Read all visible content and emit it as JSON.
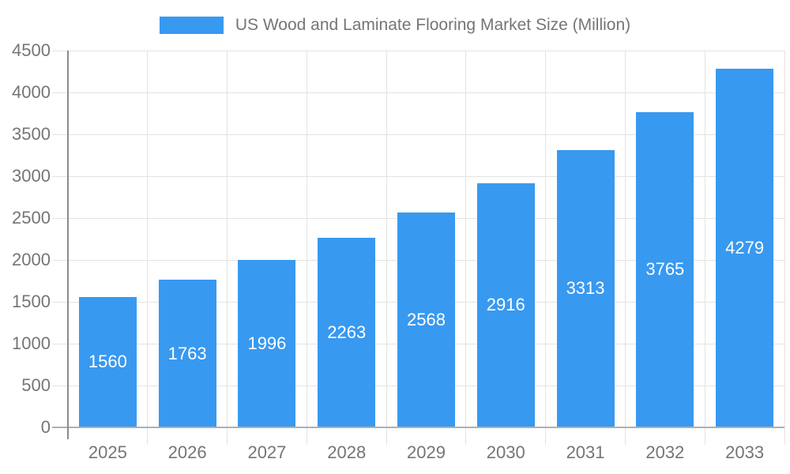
{
  "chart_data": {
    "type": "bar",
    "title": "US Wood and Laminate Flooring Market Size (Million)",
    "legend_position": "top",
    "categories": [
      "2025",
      "2026",
      "2027",
      "2028",
      "2029",
      "2030",
      "2031",
      "2032",
      "2033"
    ],
    "series": [
      {
        "name": "US Wood and Laminate Flooring Market Size (Million)",
        "values": [
          1560,
          1763,
          1996,
          2263,
          2568,
          2916,
          3313,
          3765,
          4279
        ]
      }
    ],
    "data_labels_shown": true,
    "xlabel": "",
    "ylabel": "",
    "ylim": [
      0,
      4500
    ],
    "ytick_step": 500,
    "yticks": [
      0,
      500,
      1000,
      1500,
      2000,
      2500,
      3000,
      3500,
      4000,
      4500
    ],
    "grid": true,
    "colors": {
      "bar": "#3899f0",
      "bar_label": "#ffffff",
      "tick_label": "#757575",
      "legend_text": "#757575",
      "gridline": "#e3e3e3",
      "axis_line": "#8c8c8c",
      "baseline": "#b0b0b0",
      "background": "#ffffff"
    }
  }
}
